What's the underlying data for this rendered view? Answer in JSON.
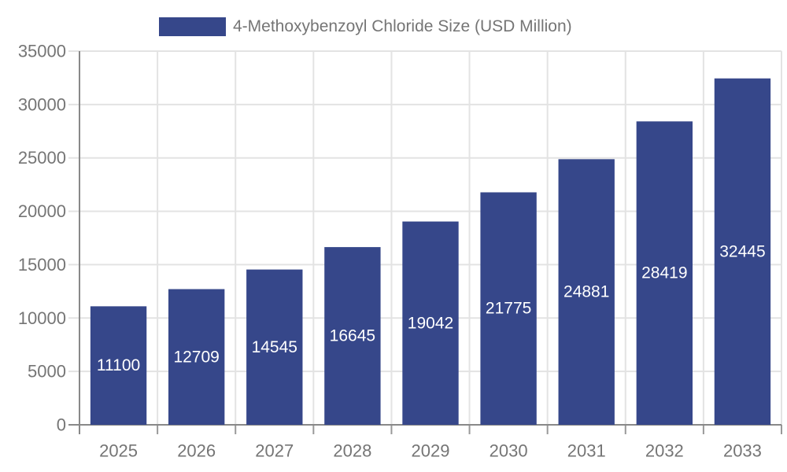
{
  "chart_data": {
    "type": "bar",
    "title": "4-Methoxybenzoyl Chloride Size (USD Million)",
    "categories": [
      "2025",
      "2026",
      "2027",
      "2028",
      "2029",
      "2030",
      "2031",
      "2032",
      "2033"
    ],
    "values": [
      11100,
      12709,
      14545,
      16645,
      19042,
      21775,
      24881,
      28419,
      32445
    ],
    "xlabel": "",
    "ylabel": "",
    "ylim": [
      0,
      35000
    ],
    "yticks": [
      0,
      5000,
      10000,
      15000,
      20000,
      25000,
      30000,
      35000
    ],
    "grid": true,
    "legend_position": "top",
    "bar_labels_inside": true
  },
  "colors": {
    "bar": "#36478A",
    "bar_label": "#ffffff",
    "grid": "#e3e3e3",
    "axis": "#888888",
    "tick": "#999999",
    "text": "#757575",
    "background": "#ffffff"
  }
}
